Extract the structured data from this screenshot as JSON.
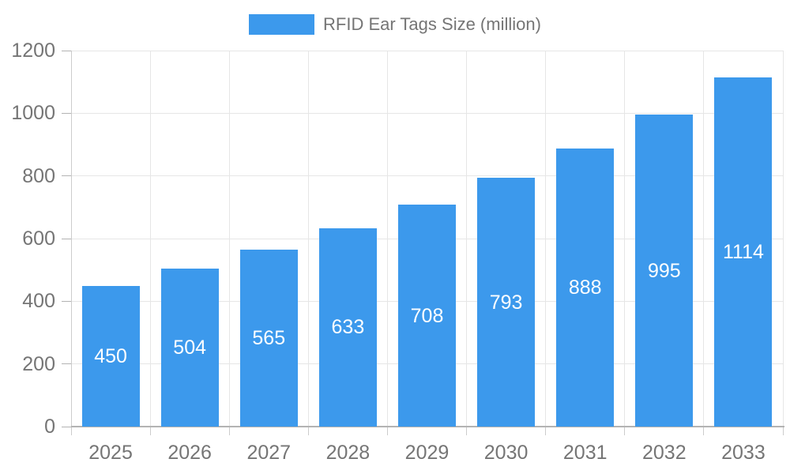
{
  "legend": {
    "label": "RFID Ear Tags Size (million)"
  },
  "chart_data": {
    "type": "bar",
    "title": "RFID Ear Tags Size (million)",
    "categories": [
      "2025",
      "2026",
      "2027",
      "2028",
      "2029",
      "2030",
      "2031",
      "2032",
      "2033"
    ],
    "values": [
      450,
      504,
      565,
      633,
      708,
      793,
      888,
      995,
      1114
    ],
    "xlabel": "",
    "ylabel": "",
    "ylim": [
      0,
      1200
    ],
    "yticks": [
      0,
      200,
      400,
      600,
      800,
      1000,
      1200
    ],
    "grid": true,
    "legend_position": "top",
    "bar_color": "#3C99EC",
    "bar_label_color": "#ffffff",
    "axis_text_color": "#757575",
    "gridline_color": "#e6e6e6"
  }
}
